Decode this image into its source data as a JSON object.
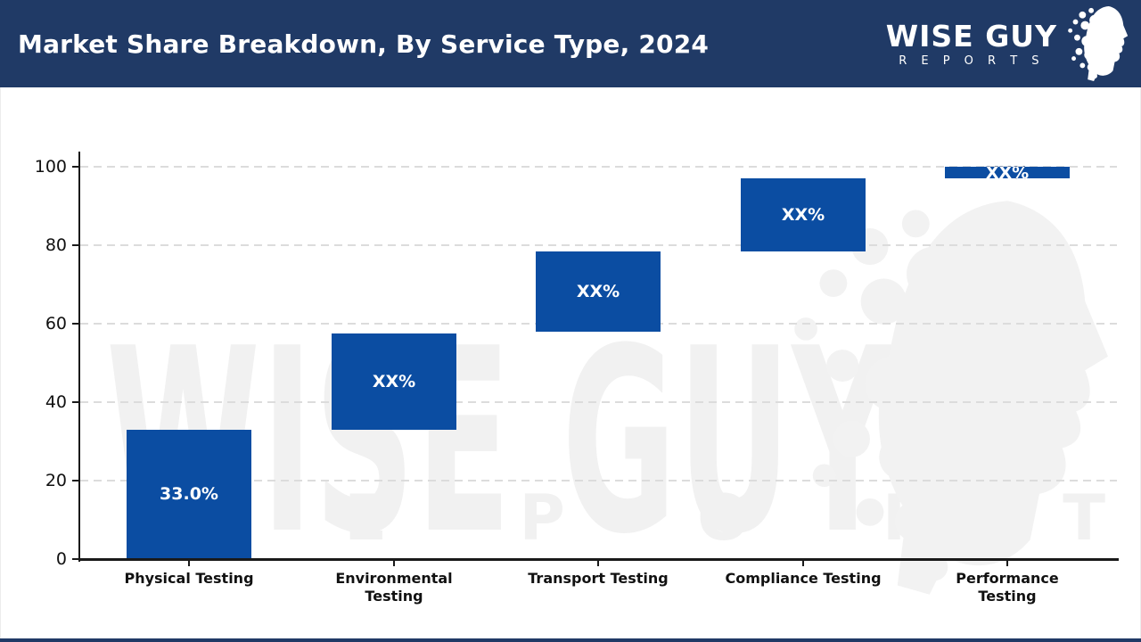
{
  "header": {
    "title": "Market Share Breakdown, By Service Type, 2024",
    "logo": {
      "line1": "WISE GUY",
      "line2": "R E P O R T S",
      "face_icon": "dotted-head-profile"
    }
  },
  "watermark": {
    "line1": "WISE GUY",
    "line2": "R E P O R T S",
    "face_icon": "dotted-head-profile"
  },
  "colors": {
    "header_bg": "#203a66",
    "bar": "#0b4da2",
    "bar_label_on_bar": "#ffffff",
    "bar_label_overflow": "#203a66",
    "grid": "#dcdcdc",
    "axis": "#1a1a1a",
    "tick_text": "#111111",
    "watermark": "#f1f1f1",
    "background": "#ffffff"
  },
  "chart_data": {
    "type": "bar",
    "subtype": "waterfall",
    "title": "Market Share Breakdown, By Service Type, 2024",
    "xlabel": "",
    "ylabel": "",
    "ylim": [
      0,
      100
    ],
    "yticks": [
      0,
      20,
      40,
      60,
      80,
      100
    ],
    "grid": "horizontal-dashed",
    "legend": "none",
    "categories": [
      "Physical Testing",
      "Environmental\nTesting",
      "Transport Testing",
      "Compliance Testing",
      "Performance\nTesting"
    ],
    "segments": [
      {
        "category": "Physical Testing",
        "start": 0,
        "end": 33,
        "label": "33.0%"
      },
      {
        "category": "Environmental Testing",
        "start": 33,
        "end": 57.5,
        "label": "XX%"
      },
      {
        "category": "Transport Testing",
        "start": 58,
        "end": 78.5,
        "label": "XX%"
      },
      {
        "category": "Compliance Testing",
        "start": 78.5,
        "end": 97,
        "label": "XX%"
      },
      {
        "category": "Performance Testing",
        "start": 97,
        "end": 100,
        "label": "XX%"
      }
    ]
  }
}
